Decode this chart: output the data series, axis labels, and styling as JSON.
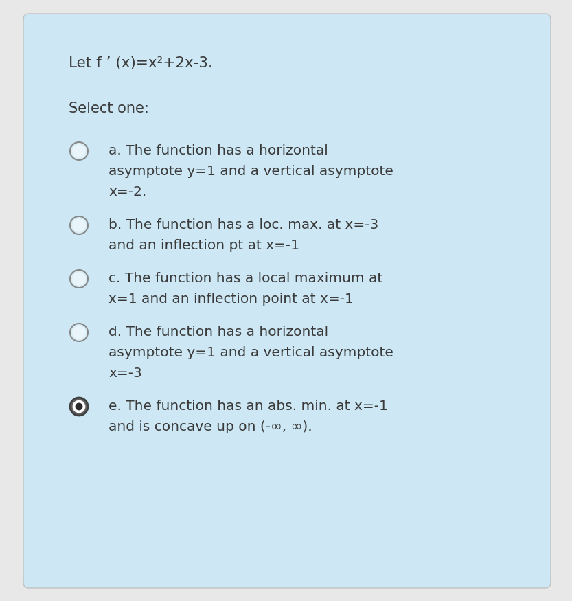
{
  "background_outer": "#e8e8e8",
  "card_color": "#cde8f4",
  "title": "Let f ’ (x)=x²+2x-3.",
  "select_label": "Select one:",
  "options": [
    {
      "text_lines": [
        "a. The function has a horizontal",
        "asymptote y=1 and a vertical asymptote",
        "x=-2."
      ],
      "selected": false,
      "num_lines": 3
    },
    {
      "text_lines": [
        "b. The function has a loc. max. at x=-3",
        "and an inflection pt at x=-1"
      ],
      "selected": false,
      "num_lines": 2
    },
    {
      "text_lines": [
        "c. The function has a local maximum at",
        "x=1 and an inflection point at x=-1"
      ],
      "selected": false,
      "num_lines": 2
    },
    {
      "text_lines": [
        "d. The function has a horizontal",
        "asymptote y=1 and a vertical asymptote",
        "x=-3"
      ],
      "selected": false,
      "num_lines": 3
    },
    {
      "text_lines": [
        "e. The function has an abs. min. at x=-1",
        "and is concave up on (-∞, ∞)."
      ],
      "selected": true,
      "num_lines": 2
    }
  ],
  "text_color": "#3a3a3a",
  "font_size_title": 15.5,
  "font_size_select": 15,
  "font_size_option": 14.5
}
